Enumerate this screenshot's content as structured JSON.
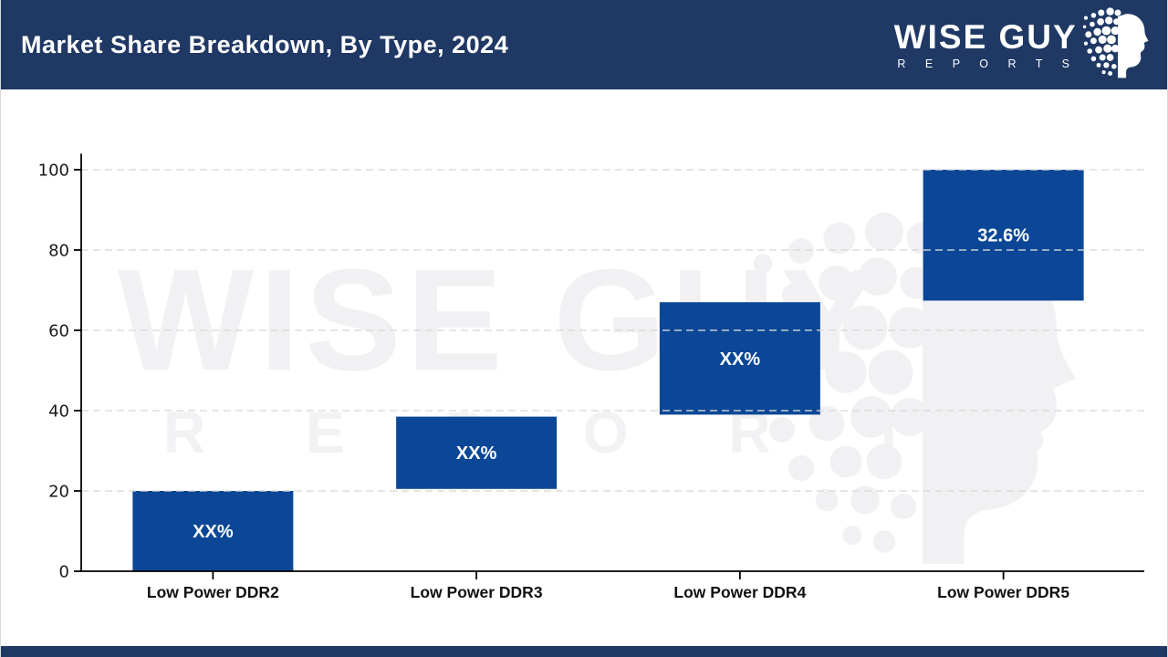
{
  "header": {
    "title": "Market Share Breakdown, By Type, 2024",
    "logo": {
      "line1": "WISE GUY",
      "line2": "R E P O R T S",
      "head_icon": "dotted-face-profile"
    }
  },
  "watermark": {
    "line1": "WISE GUY",
    "line2": "R E P O R T S"
  },
  "colors": {
    "header_navy": "#1f3864",
    "bar_blue": "#0b4796",
    "gridline": "#d9d9d9",
    "axis": "#000000",
    "bar_label_text": "#ffffff",
    "watermark_gray": "#f1f1f4"
  },
  "chart_data": {
    "type": "bar",
    "subtype": "floating-waterfall",
    "title": "Market Share Breakdown, By Type, 2024",
    "categories": [
      "Low Power DDR2",
      "Low Power DDR3",
      "Low Power DDR4",
      "Low Power DDR5"
    ],
    "bars": [
      {
        "category": "Low Power DDR2",
        "start": 0,
        "end": 20,
        "label": "XX%"
      },
      {
        "category": "Low Power DDR3",
        "start": 20.5,
        "end": 38.5,
        "label": "XX%"
      },
      {
        "category": "Low Power DDR4",
        "start": 39,
        "end": 67,
        "label": "XX%"
      },
      {
        "category": "Low Power DDR5",
        "start": 67.4,
        "end": 100,
        "label": "32.6%"
      }
    ],
    "xlabel": "",
    "ylabel": "",
    "yticks": [
      0,
      20,
      40,
      60,
      80,
      100
    ],
    "ylim": [
      0,
      104
    ],
    "grid": "horizontal-dashed",
    "legend": "none"
  }
}
